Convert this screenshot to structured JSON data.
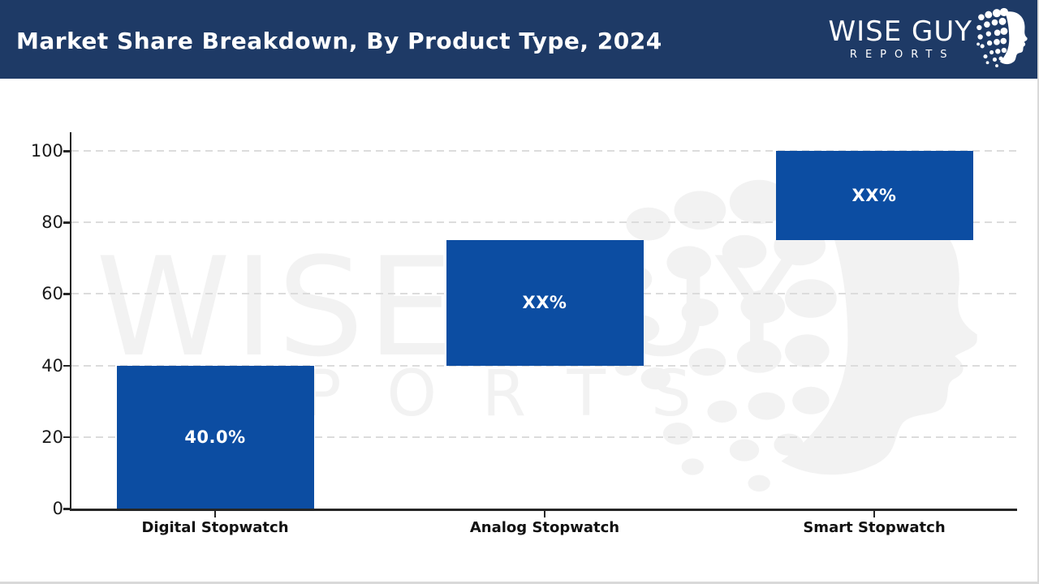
{
  "header": {
    "title": "Market Share Breakdown, By Product Type, 2024"
  },
  "brand": {
    "name": "WISE GUY",
    "subtitle": "REPORTS"
  },
  "colors": {
    "header_background": "#1e3a66",
    "bar_blue": "#0c4da2",
    "bar_label": "#ffffff",
    "watermark_gray": "#f2f2f2",
    "grid_gray": "#dcdcdc",
    "axis_black": "#262626"
  },
  "chart_data": {
    "type": "bar",
    "subtype": "waterfall",
    "title": "Market Share Breakdown, By Product Type, 2024",
    "xlabel": "",
    "ylabel": "",
    "ylim": [
      0,
      100
    ],
    "yticks": [
      0,
      20,
      40,
      60,
      80,
      100
    ],
    "grid": "horizontal-dashed",
    "legend": "none",
    "categories": [
      "Digital Stopwatch",
      "Analog Stopwatch",
      "Smart Stopwatch"
    ],
    "series": [
      {
        "name": "Market Share (%)",
        "segments": [
          {
            "category": "Digital Stopwatch",
            "start": 0,
            "end": 40,
            "label": "40.0%"
          },
          {
            "category": "Analog Stopwatch",
            "start": 40,
            "end": 75,
            "label": "XX%"
          },
          {
            "category": "Smart Stopwatch",
            "start": 75,
            "end": 100,
            "label": "XX%"
          }
        ]
      }
    ],
    "bar_color": "#0c4da2",
    "label_color": "#ffffff"
  }
}
